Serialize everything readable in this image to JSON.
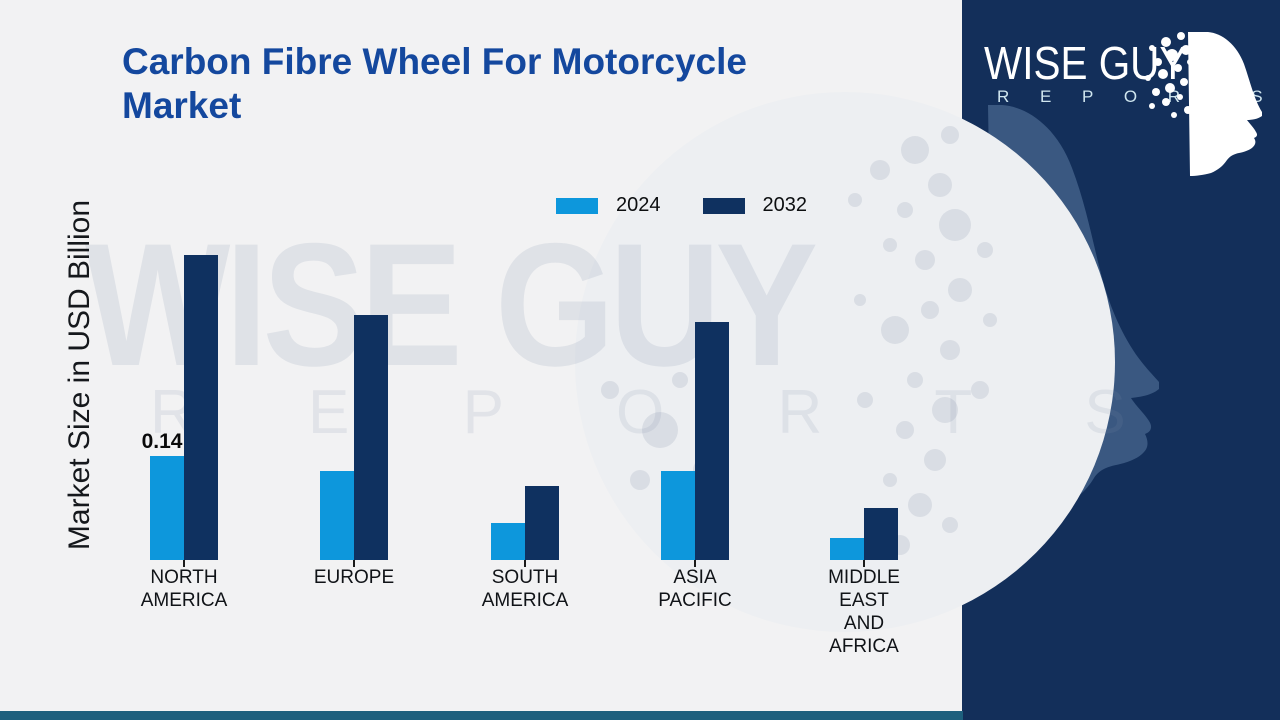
{
  "page": {
    "background": "#F2F2F3",
    "panel_navy": "#132F5A",
    "teal_strip": "#1D5F7D"
  },
  "title": {
    "line1": "Carbon Fibre Wheel For Motorcycle",
    "line2": "Market",
    "color": "#14489E"
  },
  "brand": {
    "logo_primary": "WISE GUY",
    "logo_secondary": "R E P O R T S",
    "watermark_primary": "WISE GUY",
    "watermark_secondary": "R E P O R T S"
  },
  "chart_data": {
    "type": "bar",
    "title": "Carbon Fibre Wheel For Motorcycle Market",
    "xlabel": "",
    "ylabel": "Market Size in USD Billion",
    "categories": [
      "NORTH AMERICA",
      "EUROPE",
      "SOUTH AMERICA",
      "ASIA PACIFIC",
      "MIDDLE EAST AND AFRICA"
    ],
    "category_label_lines": [
      [
        "NORTH",
        "AMERICA"
      ],
      [
        "EUROPE"
      ],
      [
        "SOUTH",
        "AMERICA"
      ],
      [
        "ASIA",
        "PACIFIC"
      ],
      [
        "MIDDLE",
        "EAST",
        "AND",
        "AFRICA"
      ]
    ],
    "series": [
      {
        "name": "2024",
        "color": "#0D97DC",
        "values": [
          0.14,
          0.12,
          0.05,
          0.12,
          0.03
        ]
      },
      {
        "name": "2032",
        "color": "#0F3160",
        "values": [
          0.41,
          0.33,
          0.1,
          0.32,
          0.07
        ]
      }
    ],
    "data_labels": [
      {
        "category_index": 0,
        "series_index": 0,
        "text": "0.14"
      }
    ],
    "ylim": [
      0,
      0.45
    ],
    "grid": false,
    "legend_position": "top-right"
  }
}
